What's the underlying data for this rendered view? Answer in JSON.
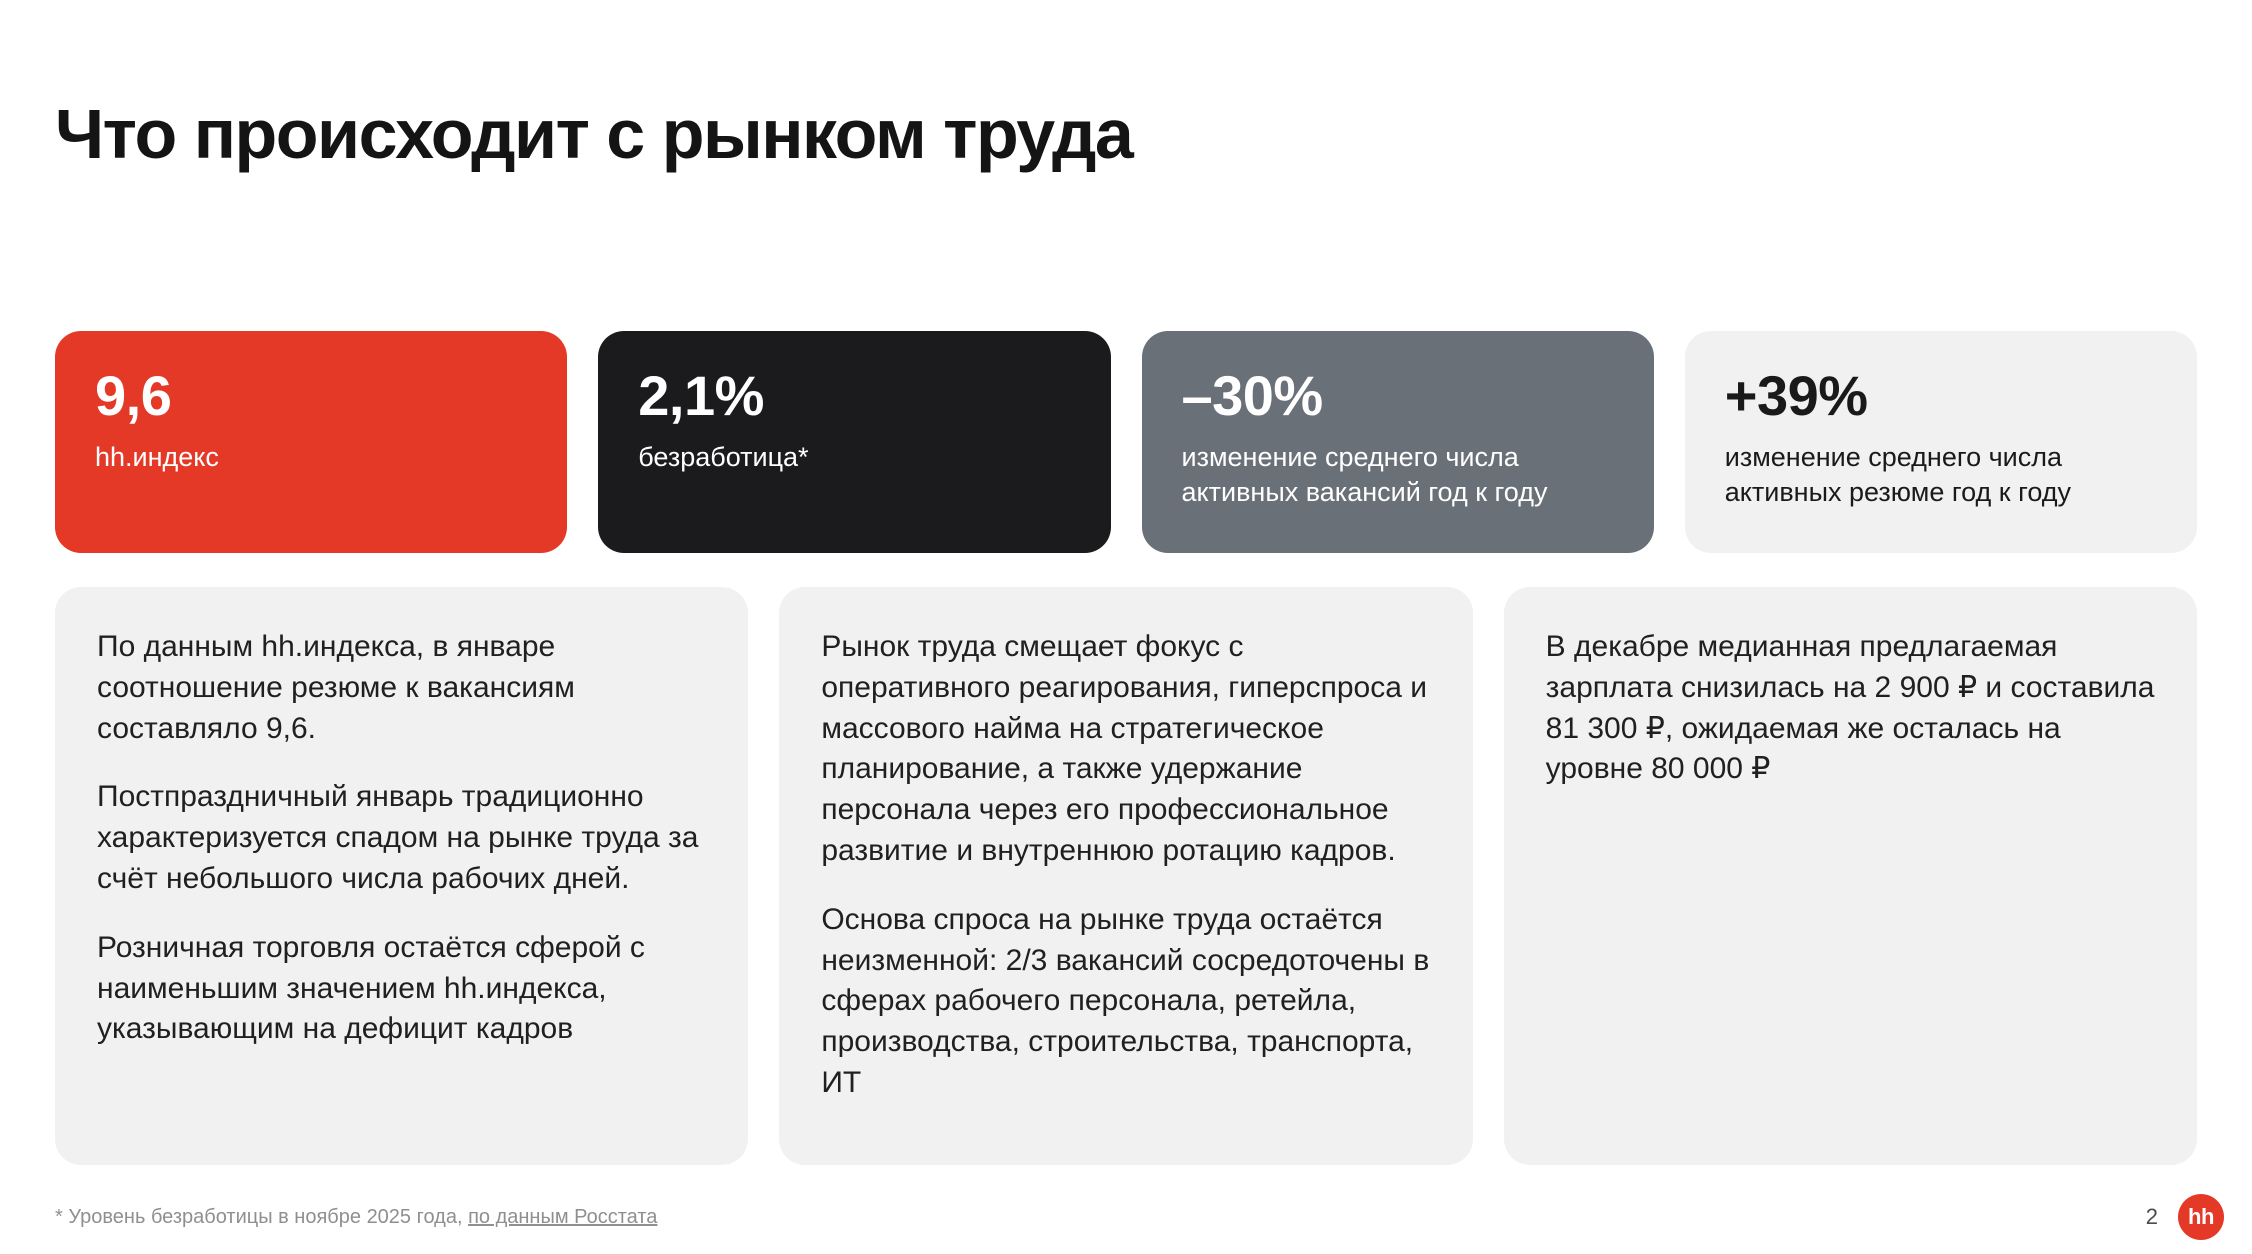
{
  "page": {
    "title": "Что происходит с рынком труда"
  },
  "stat_cards": [
    {
      "value": "9,6",
      "label": "hh.индекс",
      "bg": "#e53928",
      "fg": "#ffffff"
    },
    {
      "value": "2,1%",
      "label": "безработица*",
      "bg": "#1b1b1d",
      "fg": "#ffffff"
    },
    {
      "value": "–30%",
      "label": "изменение среднего числа активных вакансий год к году",
      "bg": "#697077",
      "fg": "#ffffff"
    },
    {
      "value": "+39%",
      "label": "изменение среднего числа активных резюме год к году",
      "bg": "#f1f1f2",
      "fg": "#1a1a1a"
    }
  ],
  "text_cards": [
    {
      "paragraphs": [
        "По данным hh.индекса, в январе соотношение резюме к вакансиям составляло 9,6.",
        "Постпраздничный январь традиционно характеризуется спадом на рынке труда за счёт небольшого числа рабочих дней.",
        "Розничная торговля остаётся сферой с наименьшим значением hh.индекса, указывающим на дефицит кадров"
      ]
    },
    {
      "paragraphs": [
        "Рынок труда смещает фокус с оперативного реагирования, гиперспроса и массового найма на стратегическое планирование, а также удержание персонала через его профессиональное развитие и внутреннюю ротацию кадров.",
        "Основа спроса на рынке труда остаётся неизменной: 2/3 вакансий сосредоточены в сферах рабочего персонала, ретейла, производства, строительства, транспорта, ИТ"
      ]
    },
    {
      "paragraphs": [
        "В декабре медианная предлагаемая зарплата снизилась на 2 900 ₽ и составила 81 300 ₽, ожидаемая же осталась на уровне 80 000 ₽"
      ]
    }
  ],
  "footer": {
    "note_prefix": "* Уровень безработицы в ноябре 2025 года, ",
    "note_link": "по данным Росстата",
    "page_number": "2",
    "logo_text": "hh",
    "logo_bg": "#e53928"
  }
}
